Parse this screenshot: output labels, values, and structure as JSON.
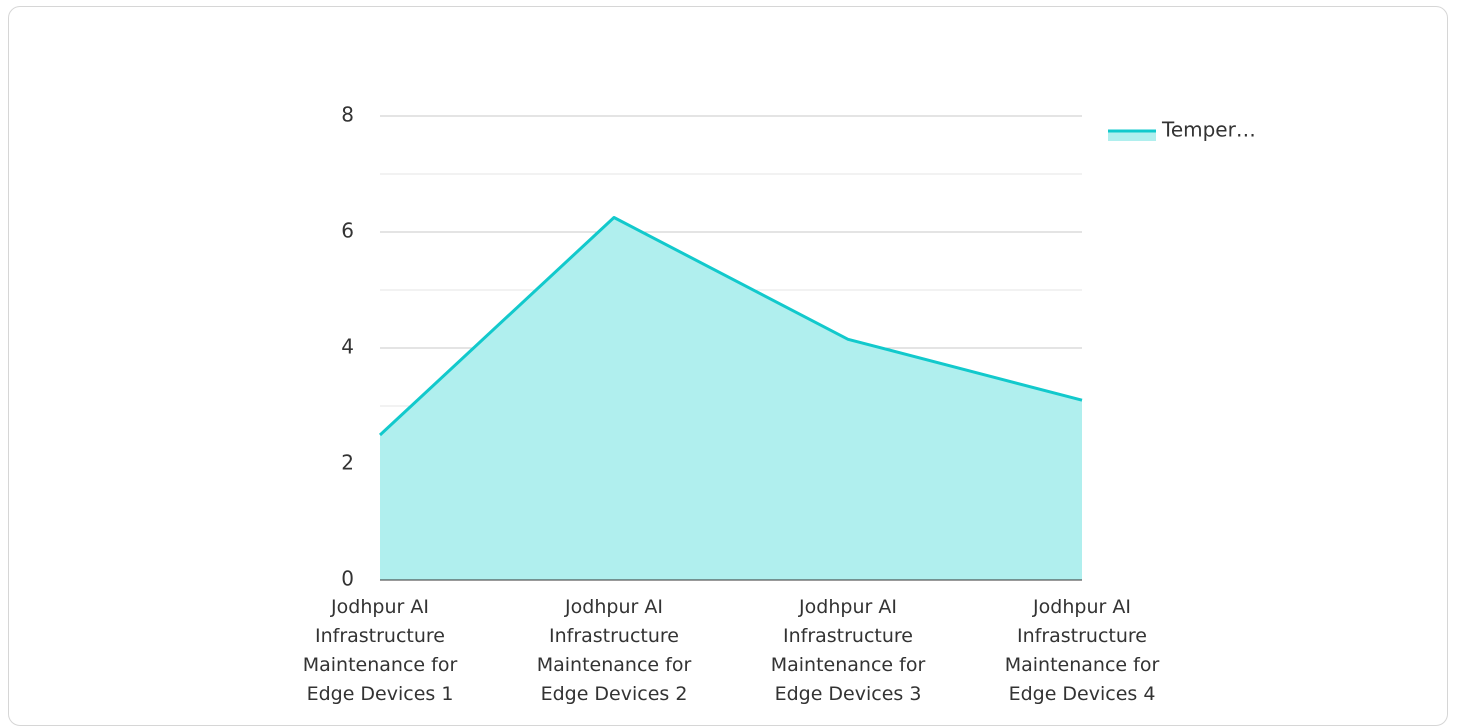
{
  "chart_data": {
    "type": "area",
    "categories": [
      "Jodhpur AI Infrastructure Maintenance for Edge Devices 1",
      "Jodhpur AI Infrastructure Maintenance for Edge Devices 2",
      "Jodhpur AI Infrastructure Maintenance for Edge Devices 3",
      "Jodhpur AI Infrastructure Maintenance for Edge Devices 4"
    ],
    "series": [
      {
        "name": "Temper…",
        "color": "#12c9cc",
        "fill": "#b0efee",
        "values": [
          2.5,
          6.25,
          4.15,
          3.1
        ]
      }
    ],
    "ylim": [
      0,
      8
    ],
    "yticks": [
      0,
      2,
      4,
      6,
      8
    ],
    "minor_yticks": [
      1,
      3,
      5,
      7
    ],
    "grid": true,
    "legend": "top-right"
  }
}
